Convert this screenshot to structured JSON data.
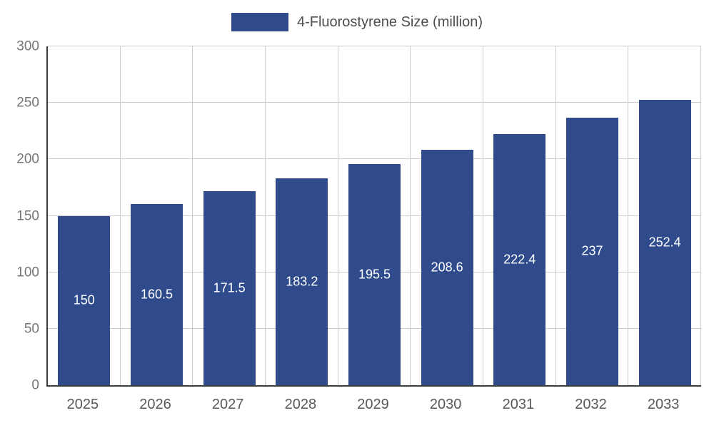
{
  "chart_data": {
    "type": "bar",
    "title": "4-Fluorostyrene Size (million)",
    "categories": [
      "2025",
      "2026",
      "2027",
      "2028",
      "2029",
      "2030",
      "2031",
      "2032",
      "2033"
    ],
    "values": [
      150,
      160.5,
      171.5,
      183.2,
      195.5,
      208.6,
      222.4,
      237,
      252.4
    ],
    "value_labels": [
      "150",
      "160.5",
      "171.5",
      "183.2",
      "195.5",
      "208.6",
      "222.4",
      "237",
      "252.4"
    ],
    "xlabel": "",
    "ylabel": "",
    "ylim": [
      0,
      300
    ],
    "yticks": [
      0,
      50,
      100,
      150,
      200,
      250,
      300
    ],
    "grid": true,
    "legend_position": "top",
    "colors": {
      "bar": "#2f4b8c",
      "value_label": "#ffffff",
      "gridline": "#cccccc",
      "axis": "#3c3c3c",
      "tick_label": "#757575",
      "legend_text": "#4d4d4d",
      "background": "#ffffff"
    }
  }
}
